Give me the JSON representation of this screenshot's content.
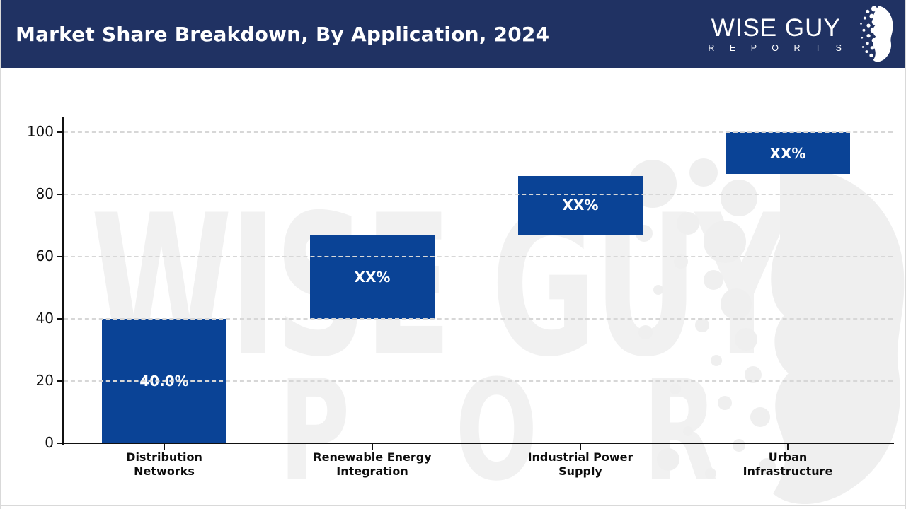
{
  "header": {
    "title": "Market Share Breakdown, By Application, 2024",
    "logo": {
      "line1": "WISE GUY",
      "line2": "R E P O R T S"
    }
  },
  "watermark": {
    "line1": "WISE GUY",
    "line2": "P O R T S"
  },
  "colors": {
    "header_bg": "#203263",
    "bar_fill": "#0a4396",
    "grid": "#d7d7d7",
    "axis": "#111111",
    "text": "#0d0d0d",
    "watermark": "#f1f1f1",
    "frame_border": "#d9d9d9"
  },
  "chart_data": {
    "type": "bar",
    "subtype": "waterfall-floating-bars",
    "title": "Market Share Breakdown, By Application, 2024",
    "xlabel": "",
    "ylabel": "",
    "ylim": [
      0,
      100
    ],
    "grid": "horizontal dashed, drawn above bars",
    "legend": "none",
    "yticks": [
      0,
      20,
      40,
      60,
      80,
      100
    ],
    "ytick_labels": [
      "0",
      "20",
      "40",
      "60",
      "80",
      "100"
    ],
    "categories": [
      "Distribution Networks",
      "Renewable Energy Integration",
      "Industrial Power Supply",
      "Urban Infrastructure"
    ],
    "category_lines": [
      [
        "Distribution",
        "Networks"
      ],
      [
        "Renewable Energy",
        "Integration"
      ],
      [
        "Industrial Power",
        "Supply"
      ],
      [
        "Urban",
        "Infrastructure"
      ]
    ],
    "segments": [
      {
        "start": 0,
        "end": 40,
        "label": "40.0%",
        "estimated_value": 40
      },
      {
        "start": 40,
        "end": 67,
        "label": "XX%",
        "estimated_value": 27
      },
      {
        "start": 67,
        "end": 86,
        "label": "XX%",
        "estimated_value": 19
      },
      {
        "start": 86.5,
        "end": 100,
        "label": "XX%",
        "estimated_value": 13.5
      }
    ],
    "bar_color": "#0a4396",
    "bar_label_color": "#ffffff"
  }
}
